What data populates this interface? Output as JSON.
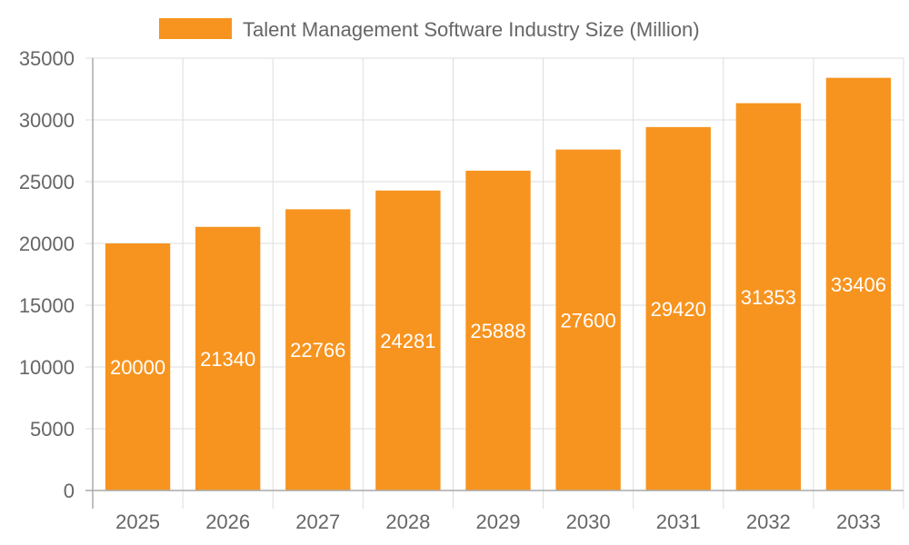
{
  "chart_data": {
    "type": "bar",
    "title": "",
    "xlabel": "",
    "ylabel": "",
    "categories": [
      "2025",
      "2026",
      "2027",
      "2028",
      "2029",
      "2030",
      "2031",
      "2032",
      "2033"
    ],
    "series": [
      {
        "name": "Talent Management Software Industry Size (Million)",
        "values": [
          20000,
          21340,
          22766,
          24281,
          25888,
          27600,
          29420,
          31353,
          33406
        ],
        "color": "#F7941F"
      }
    ],
    "ylim": [
      0,
      35000
    ],
    "yticks": [
      0,
      5000,
      10000,
      15000,
      20000,
      25000,
      30000,
      35000
    ],
    "grid": true,
    "legend": "top-center",
    "data_labels": true
  }
}
